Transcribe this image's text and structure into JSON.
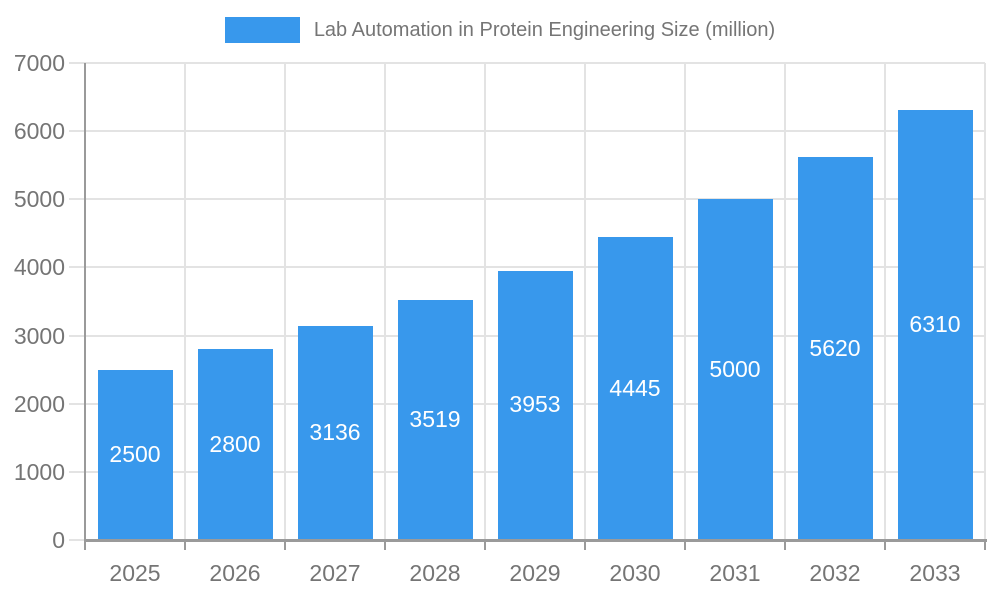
{
  "legend": {
    "label": "Lab Automation in Protein Engineering Size (million)"
  },
  "chart_data": {
    "type": "bar",
    "title": "Lab Automation in Protein Engineering Size (million)",
    "categories": [
      "2025",
      "2026",
      "2027",
      "2028",
      "2029",
      "2030",
      "2031",
      "2032",
      "2033"
    ],
    "values": [
      2500,
      2800,
      3136,
      3519,
      3953,
      4445,
      5000,
      5620,
      6310
    ],
    "value_labels": [
      "2500",
      "2800",
      "3136",
      "3519",
      "3953",
      "4445",
      "5000",
      "5620",
      "6310"
    ],
    "xlabel": "",
    "ylabel": "",
    "ylim": [
      0,
      7000
    ],
    "yticks": [
      0,
      1000,
      2000,
      3000,
      4000,
      5000,
      6000,
      7000
    ],
    "ytick_labels": [
      "0",
      "1000",
      "2000",
      "3000",
      "4000",
      "5000",
      "6000",
      "7000"
    ],
    "grid": true,
    "legend_position": "top",
    "colors": {
      "bar": "#3898EC",
      "value_label": "#ffffff",
      "axis_text": "#757575",
      "grid_line": "#e3e3e3",
      "axis_line": "#9a9a9a",
      "background": "#ffffff"
    }
  }
}
